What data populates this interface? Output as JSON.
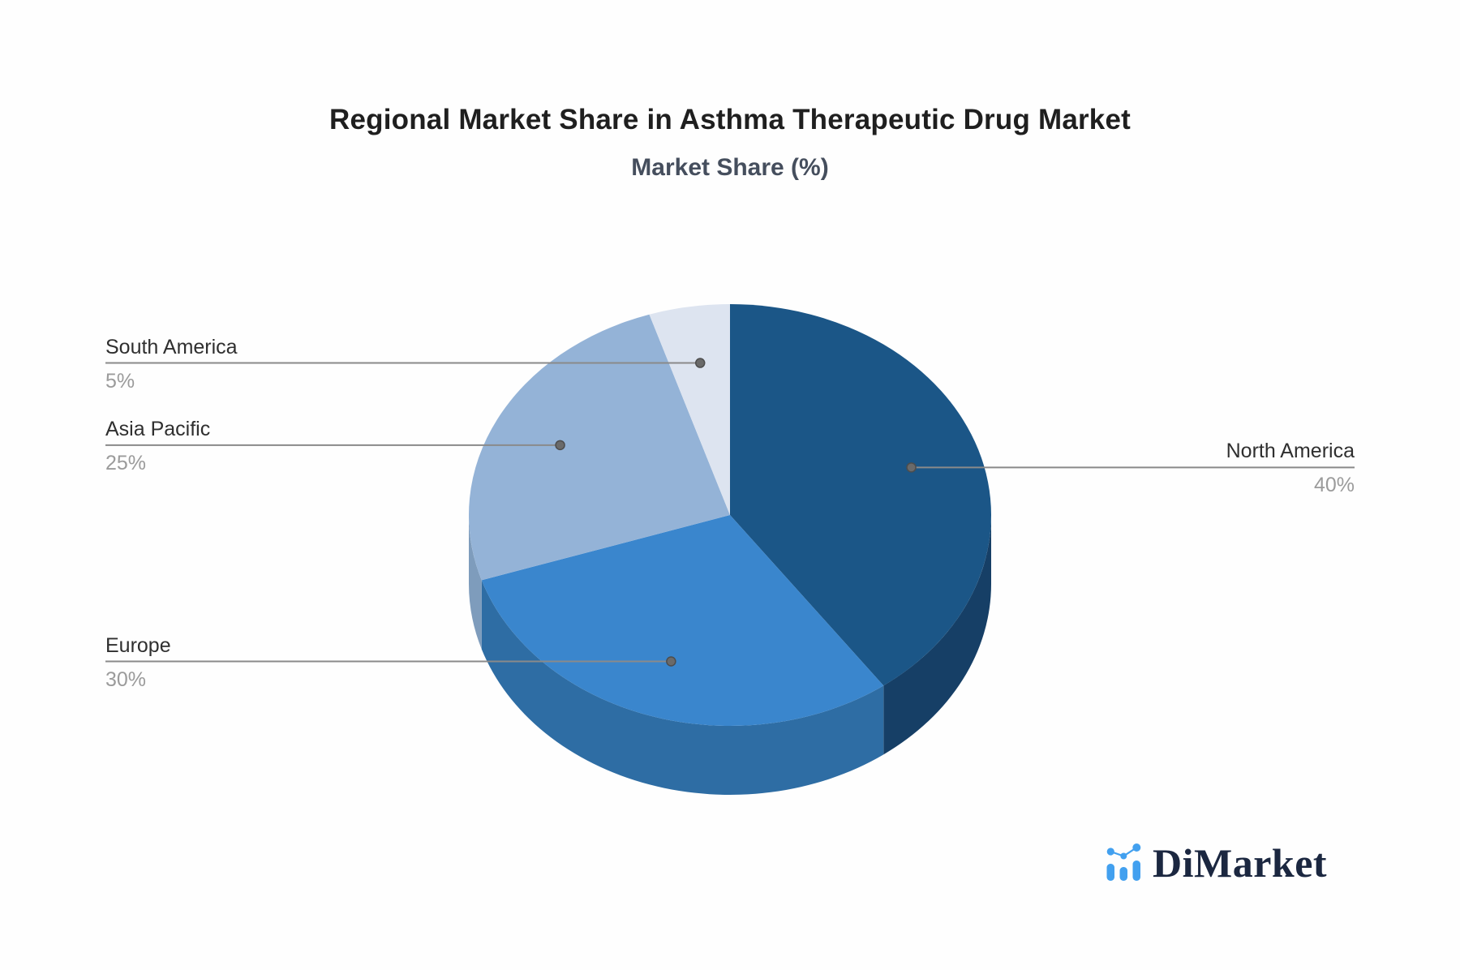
{
  "chart_data": {
    "type": "pie",
    "title": "Regional Market Share in Asthma Therapeutic Drug Market",
    "subtitle": "Market Share (%)",
    "unit": "%",
    "style": "3d",
    "start_angle_deg": 0,
    "direction": "clockwise",
    "legend_position": "connector-labels",
    "slices": [
      {
        "label": "North America",
        "value": 40,
        "value_text": "40%",
        "color": "#1b5687",
        "side_color": "#163f66",
        "label_side": "right"
      },
      {
        "label": "Europe",
        "value": 30,
        "value_text": "30%",
        "color": "#3a86cd",
        "side_color": "#2e6da4",
        "label_side": "left"
      },
      {
        "label": "Asia Pacific",
        "value": 25,
        "value_text": "25%",
        "color": "#94b3d7",
        "side_color": "#7e9cbc",
        "label_side": "left"
      },
      {
        "label": "South America",
        "value": 5,
        "value_text": "5%",
        "color": "#dde4f0",
        "side_color": "#c5d0e0",
        "label_side": "left"
      }
    ]
  },
  "connector": {
    "line_color": "#8a8a8a",
    "dot_color": "#6a6a6a",
    "dot_edge_color": "#4d4d4d"
  },
  "text_colors": {
    "title": "#1f1f1f",
    "subtitle": "#454e5d",
    "slice_label": "#2f2f2f",
    "slice_value": "#9b9b9b"
  },
  "brand": {
    "name": "DiMarket",
    "icon": "bar-chart-sparkline-icon",
    "icon_color": "#42a0ef",
    "text_color": "#1b2740"
  }
}
